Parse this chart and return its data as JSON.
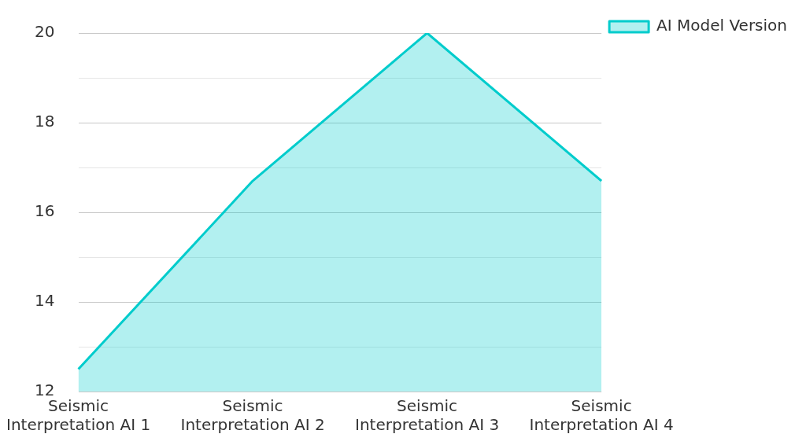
{
  "chart_data": {
    "type": "area",
    "categories": [
      "Seismic Interpretation AI 1",
      "Seismic Interpretation AI 2",
      "Seismic Interpretation AI 3",
      "Seismic Interpretation AI 4"
    ],
    "series": [
      {
        "name": "AI Model Version",
        "color": "#00cccc",
        "values": [
          12.5,
          16.7,
          20,
          16.7
        ]
      }
    ],
    "ylim": [
      12,
      20
    ],
    "yticks": [
      12,
      {
        "value": 13,
        "label": null
      },
      14,
      {
        "value": 15,
        "label": null
      },
      16,
      {
        "value": 17,
        "label": null
      },
      18,
      {
        "value": 19,
        "label": null
      },
      20
    ],
    "grid": "y",
    "legend": "top right"
  }
}
